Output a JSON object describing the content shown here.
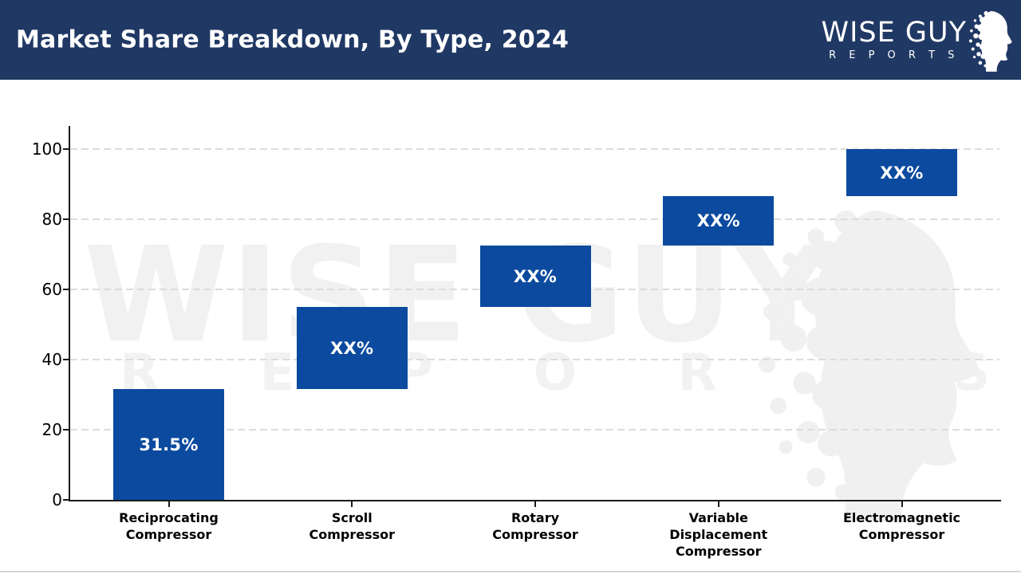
{
  "header": {
    "title": "Market Share Breakdown, By Type, 2024",
    "bg_color": "#203864",
    "brand": {
      "wordmark": "WISE GUY",
      "subtext": "R E P O R T S",
      "icon": "head-profile-dots-icon"
    }
  },
  "watermark": {
    "line1": "WISE GUY",
    "line2": "R E P O R T S",
    "icon": "head-profile-dots-icon",
    "color": "#f1f1f1"
  },
  "chart_data": {
    "type": "bar",
    "subtype": "waterfall",
    "title": "Market Share Breakdown, By Type, 2024",
    "categories": [
      "Reciprocating Compressor",
      "Scroll Compressor",
      "Rotary Compressor",
      "Variable Displacement Compressor",
      "Electromagnetic Compressor"
    ],
    "segments": [
      {
        "category": "Reciprocating Compressor",
        "label": "31.5%",
        "start": 0,
        "end": 31.5
      },
      {
        "category": "Scroll Compressor",
        "label": "XX%",
        "start": 31.5,
        "end": 55
      },
      {
        "category": "Rotary Compressor",
        "label": "XX%",
        "start": 55,
        "end": 72.5
      },
      {
        "category": "Variable Displacement Compressor",
        "label": "XX%",
        "start": 72.5,
        "end": 86.5
      },
      {
        "category": "Electromagnetic Compressor",
        "label": "XX%",
        "start": 86.5,
        "end": 100
      }
    ],
    "xlabel": "",
    "ylabel": "",
    "ylim": [
      0,
      100
    ],
    "yticks": [
      0,
      20,
      40,
      60,
      80,
      100
    ],
    "grid": "horizontal-dashed",
    "legend": "none",
    "bar_color": "#0b4a9e",
    "bar_label_color": "#ffffff",
    "axis_color": "#1a1a1a",
    "grid_color": "#dcdcdc",
    "tick_label_color": "#000000"
  }
}
